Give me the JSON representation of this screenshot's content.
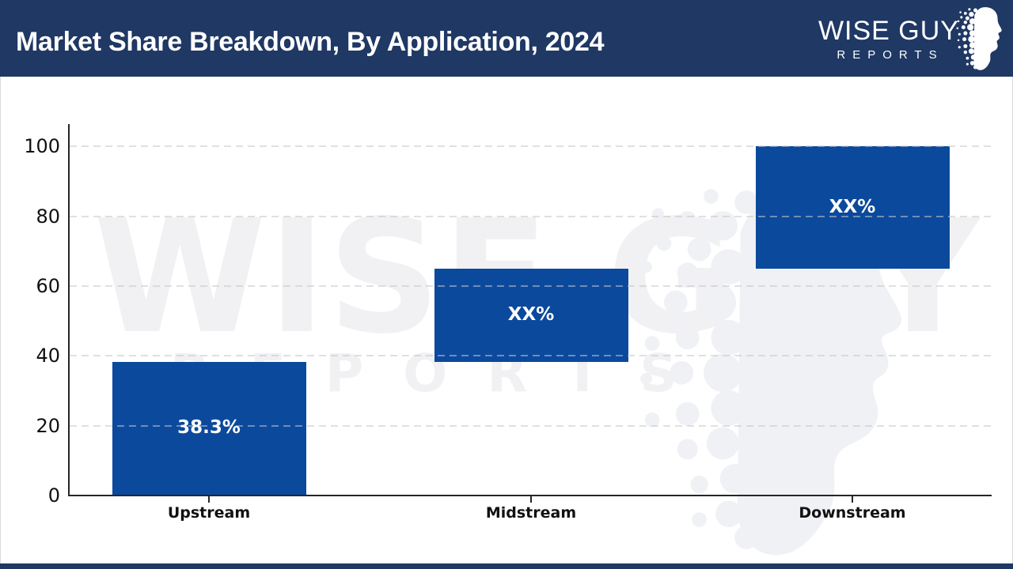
{
  "header": {
    "title": "Market Share Breakdown, By Application, 2024",
    "logo": {
      "primary": "WISE GUY",
      "secondary": "REPORTS"
    }
  },
  "watermark": {
    "primary": "WISE GUY",
    "secondary": "REPORTS"
  },
  "chart_data": {
    "type": "bar",
    "variant": "waterfall",
    "title": "Market Share Breakdown, By Application, 2024",
    "categories": [
      "Upstream",
      "Midstream",
      "Downstream"
    ],
    "series": [
      {
        "name": "Market share (%)",
        "segments": [
          {
            "category": "Upstream",
            "start": 0,
            "end": 38.3,
            "label": "38.3%"
          },
          {
            "category": "Midstream",
            "start": 38.3,
            "end": 65,
            "label": "XX%"
          },
          {
            "category": "Downstream",
            "start": 65,
            "end": 100,
            "label": "XX%"
          }
        ]
      }
    ],
    "xlabel": "",
    "ylabel": "",
    "ylim": [
      0,
      100
    ],
    "yticks": [
      0,
      20,
      40,
      60,
      80,
      100
    ],
    "grid": "horizontal-dashed",
    "legend": "none",
    "bar_color": "#0b499d",
    "bar_label_color": "#ffffff"
  },
  "colors": {
    "header_bg": "#1f3864",
    "footer_bg": "#1f3864",
    "bar": "#0b499d",
    "axis": "#262626",
    "gridline": "#d8d8d8",
    "watermark": "#f1f1f4"
  }
}
